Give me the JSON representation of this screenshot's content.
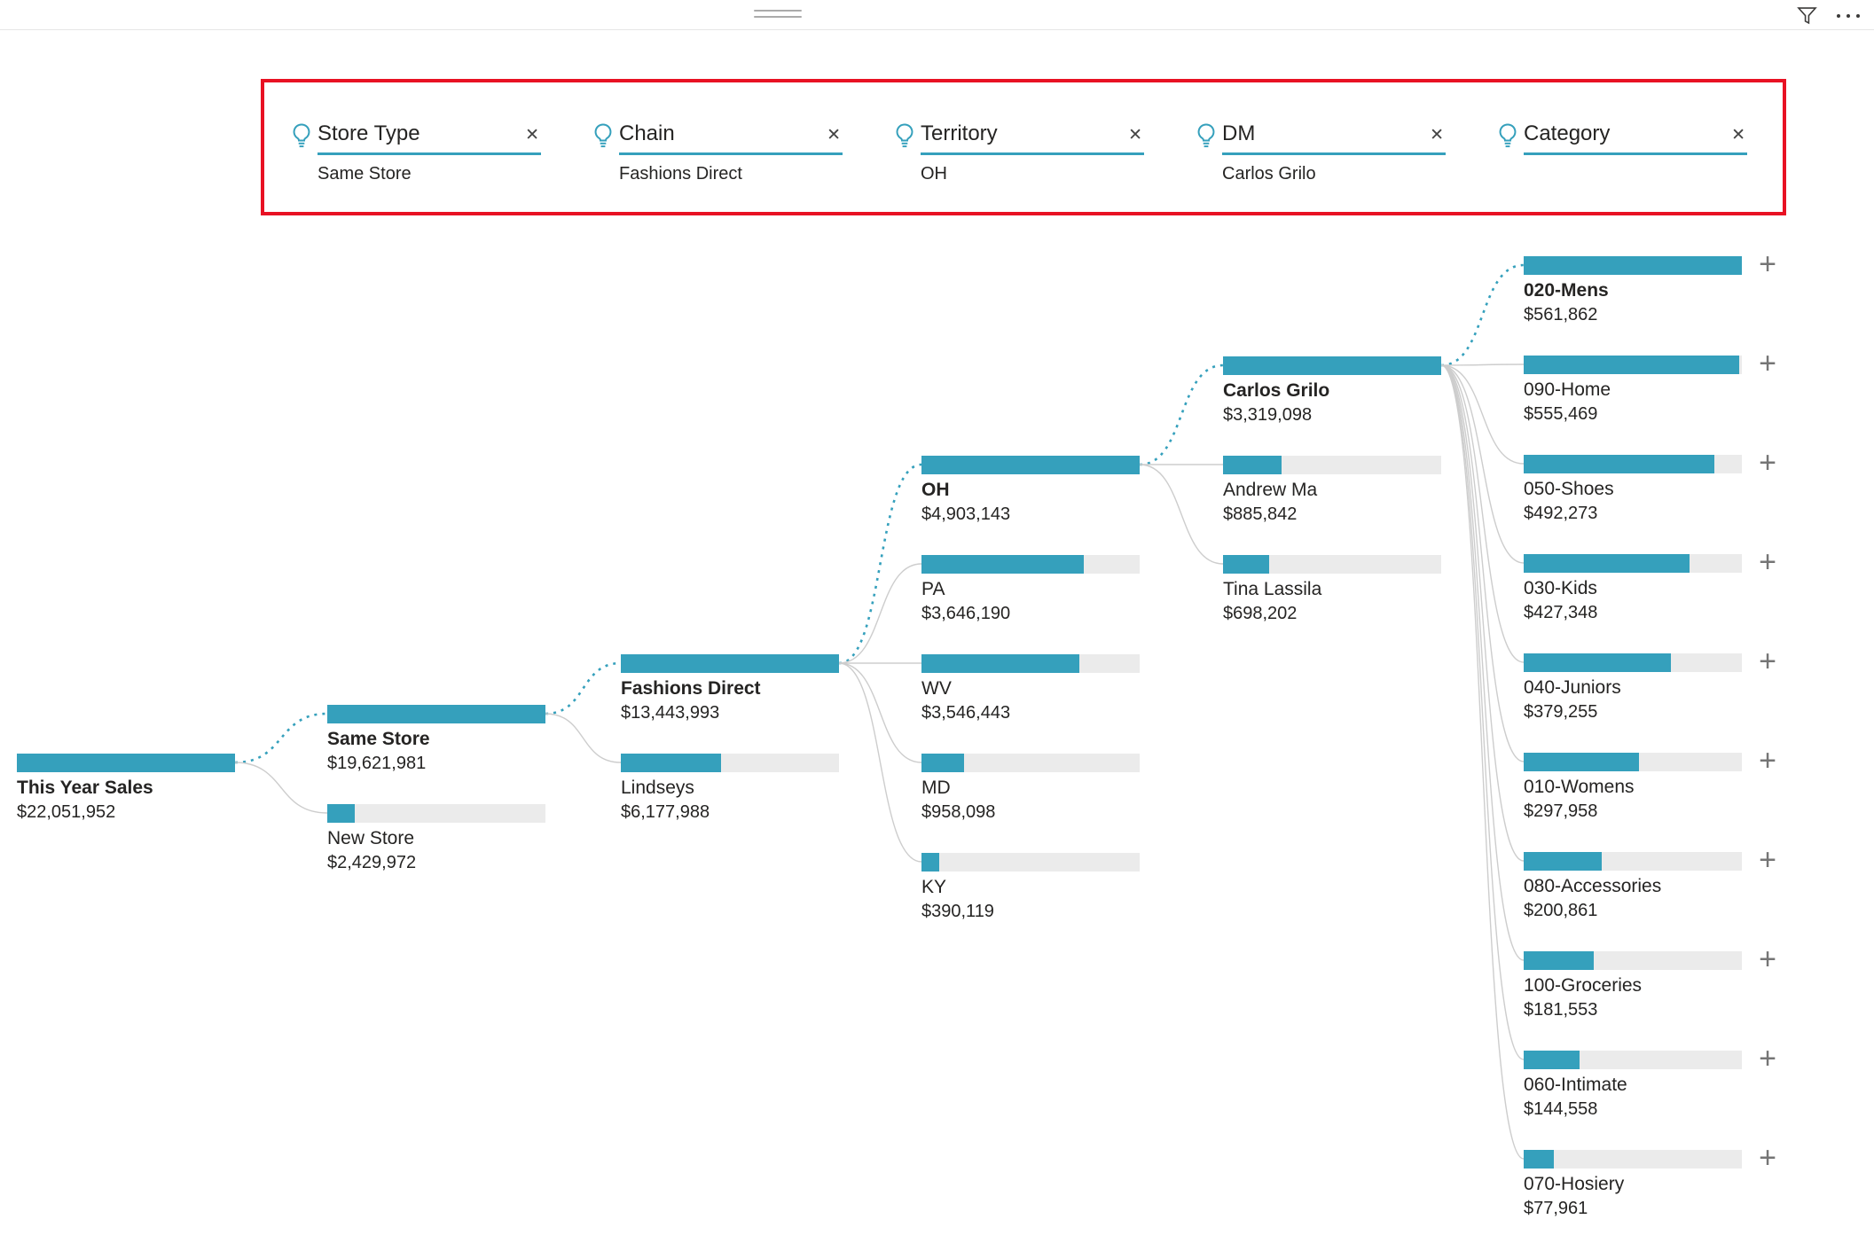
{
  "header": {
    "icons": {
      "drag_handle": "drag-handle",
      "filter": "filter-funnel-icon",
      "more": "more-options-icon"
    }
  },
  "breadcrumbs": {
    "icons": {
      "field": "lightbulb-icon",
      "remove": "close-icon"
    },
    "items": [
      {
        "label": "Store Type",
        "value": "Same Store"
      },
      {
        "label": "Chain",
        "value": "Fashions Direct"
      },
      {
        "label": "Territory",
        "value": "OH"
      },
      {
        "label": "DM",
        "value": "Carlos Grilo"
      },
      {
        "label": "Category",
        "value": ""
      }
    ]
  },
  "chart_data": {
    "type": "decomposition-tree",
    "measure": "This Year Sales",
    "legend_position": "none",
    "grid": false,
    "root": {
      "label": "This Year Sales",
      "value": 22051952,
      "value_text": "$22,051,952",
      "selected": true
    },
    "levels": [
      {
        "field": "Store Type",
        "nodes": [
          {
            "label": "Same Store",
            "value": 19621981,
            "value_text": "$19,621,981",
            "selected": true
          },
          {
            "label": "New Store",
            "value": 2429972,
            "value_text": "$2,429,972",
            "selected": false
          }
        ]
      },
      {
        "field": "Chain",
        "nodes": [
          {
            "label": "Fashions Direct",
            "value": 13443993,
            "value_text": "$13,443,993",
            "selected": true
          },
          {
            "label": "Lindseys",
            "value": 6177988,
            "value_text": "$6,177,988",
            "selected": false
          }
        ]
      },
      {
        "field": "Territory",
        "nodes": [
          {
            "label": "OH",
            "value": 4903143,
            "value_text": "$4,903,143",
            "selected": true
          },
          {
            "label": "PA",
            "value": 3646190,
            "value_text": "$3,646,190",
            "selected": false
          },
          {
            "label": "WV",
            "value": 3546443,
            "value_text": "$3,546,443",
            "selected": false
          },
          {
            "label": "MD",
            "value": 958098,
            "value_text": "$958,098",
            "selected": false
          },
          {
            "label": "KY",
            "value": 390119,
            "value_text": "$390,119",
            "selected": false
          }
        ]
      },
      {
        "field": "DM",
        "nodes": [
          {
            "label": "Carlos Grilo",
            "value": 3319098,
            "value_text": "$3,319,098",
            "selected": true
          },
          {
            "label": "Andrew Ma",
            "value": 885842,
            "value_text": "$885,842",
            "selected": false
          },
          {
            "label": "Tina Lassila",
            "value": 698202,
            "value_text": "$698,202",
            "selected": false
          }
        ]
      },
      {
        "field": "Category",
        "expandable": true,
        "nodes": [
          {
            "label": "020-Mens",
            "value": 561862,
            "value_text": "$561,862",
            "selected": true
          },
          {
            "label": "090-Home",
            "value": 555469,
            "value_text": "$555,469",
            "selected": false
          },
          {
            "label": "050-Shoes",
            "value": 492273,
            "value_text": "$492,273",
            "selected": false
          },
          {
            "label": "030-Kids",
            "value": 427348,
            "value_text": "$427,348",
            "selected": false
          },
          {
            "label": "040-Juniors",
            "value": 379255,
            "value_text": "$379,255",
            "selected": false
          },
          {
            "label": "010-Womens",
            "value": 297958,
            "value_text": "$297,958",
            "selected": false
          },
          {
            "label": "080-Accessories",
            "value": 200861,
            "value_text": "$200,861",
            "selected": false
          },
          {
            "label": "100-Groceries",
            "value": 181553,
            "value_text": "$181,553",
            "selected": false
          },
          {
            "label": "060-Intimate",
            "value": 144558,
            "value_text": "$144,558",
            "selected": false
          },
          {
            "label": "070-Hosiery",
            "value": 77961,
            "value_text": "$77,961",
            "selected": false
          }
        ]
      }
    ],
    "colors": {
      "bar_fill": "#35A0BC",
      "bar_track": "#EBEBEB",
      "link": "#CDCDCD",
      "selected_link": "#35A0BC",
      "highlight_border": "#E81123"
    }
  }
}
